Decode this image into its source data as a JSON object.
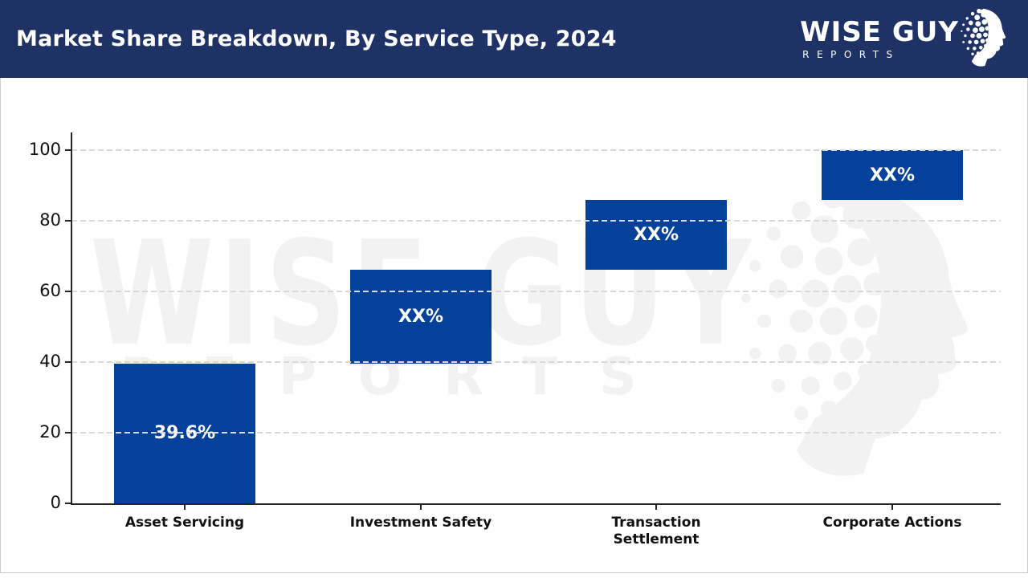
{
  "header": {
    "title": "Market Share Breakdown, By Service Type, 2024"
  },
  "logo": {
    "top": "WISE GUY",
    "bottom": "REPORTS",
    "head_icon": "wiseguy-head-icon"
  },
  "watermark": {
    "line1": "WISE GUY",
    "line2": "REPORTS",
    "head_icon": "wiseguy-head-icon"
  },
  "colors": {
    "header_bg": "#1F3265",
    "bar": "#04419B",
    "grid": "#D8D8D8",
    "axis": "#262626",
    "tick_text": "#111111",
    "bar_label_text": "#FFFFFF",
    "watermark": "#F2F2F2",
    "background": "#FFFFFF"
  },
  "chart_data": {
    "type": "bar",
    "subtype": "waterfall",
    "title": "Market Share Breakdown, By Service Type, 2024",
    "categories": [
      "Asset Servicing",
      "Investment Safety",
      "Transaction Settlement",
      "Corporate Actions"
    ],
    "category_lines": [
      [
        "Asset Servicing"
      ],
      [
        "Investment Safety"
      ],
      [
        "Transaction",
        "Settlement"
      ],
      [
        "Corporate Actions"
      ]
    ],
    "segments": [
      {
        "category": "Asset Servicing",
        "start": 0,
        "end": 39.6,
        "label": "39.6%"
      },
      {
        "category": "Investment Safety",
        "start": 39.6,
        "end": 66.1,
        "label": "XX%"
      },
      {
        "category": "Transaction Settlement",
        "start": 66.1,
        "end": 85.9,
        "label": "XX%"
      },
      {
        "category": "Corporate Actions",
        "start": 85.9,
        "end": 100,
        "label": "XX%"
      }
    ],
    "ylim": [
      0,
      100
    ],
    "yticks": [
      0,
      20,
      40,
      60,
      80,
      100
    ],
    "xlabel": "",
    "ylabel": "",
    "grid": "horizontal-dashed-above-bars",
    "legend": "none",
    "bar_color": "#04419B",
    "bar_label_color": "#FFFFFF"
  }
}
